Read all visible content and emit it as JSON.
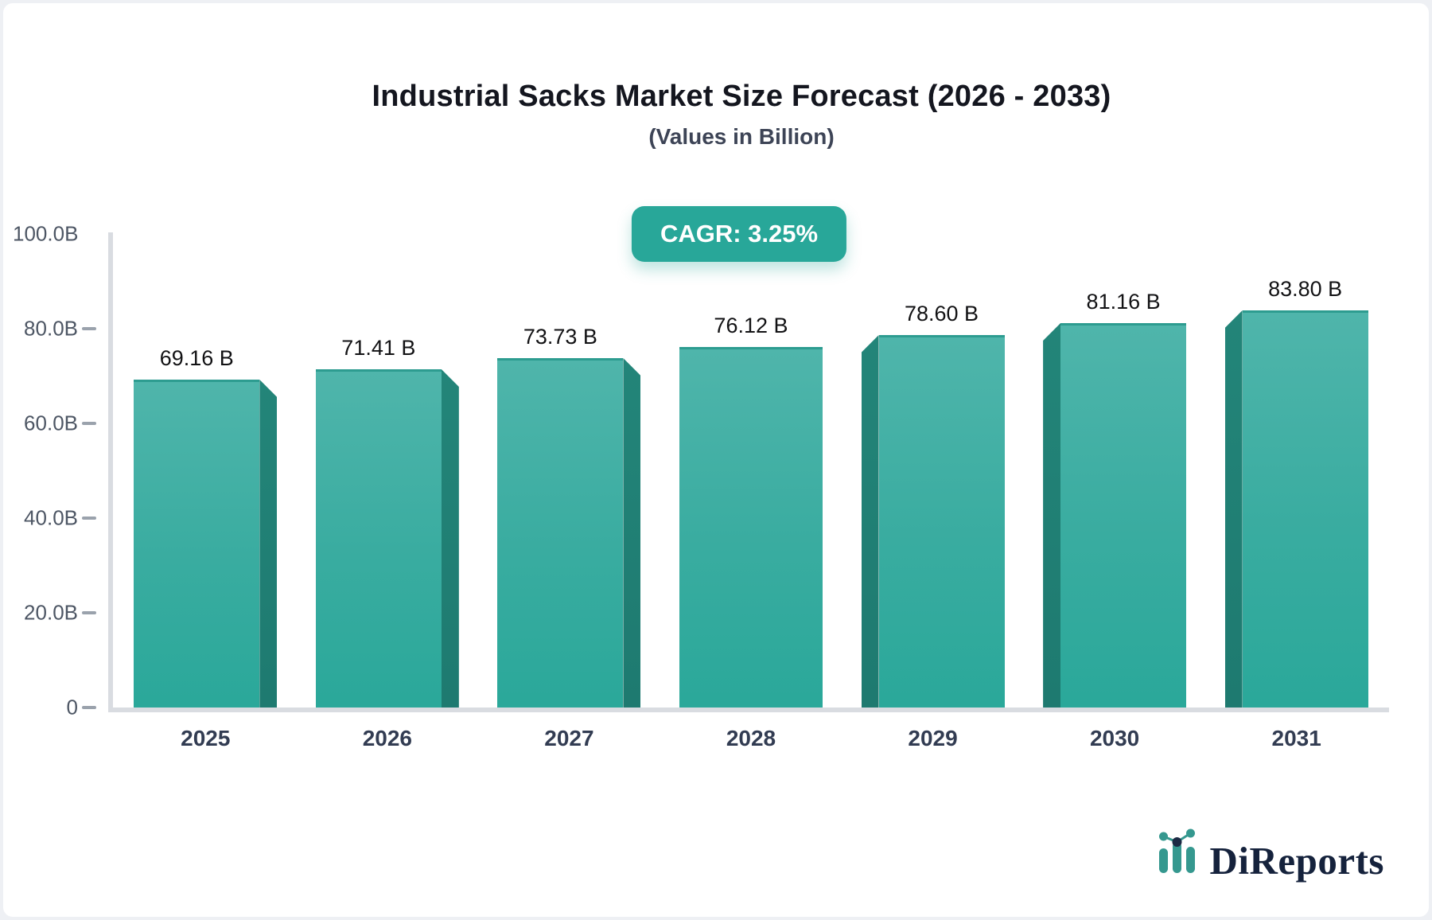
{
  "header": {
    "title": "Industrial Sacks Market Size Forecast (2026 - 2033)",
    "subtitle": "(Values in Billion)",
    "badge_label": "CAGR: 3.25%"
  },
  "chart_data": {
    "type": "bar",
    "title": "Industrial Sacks Market Size Forecast (2026 - 2033)",
    "subtitle": "(Values in Billion)",
    "xlabel": "",
    "ylabel": "",
    "ylim": [
      0,
      100
    ],
    "grid": false,
    "categories": [
      "2025",
      "2026",
      "2027",
      "2028",
      "2029",
      "2030",
      "2031"
    ],
    "values": [
      69.16,
      71.41,
      73.73,
      76.12,
      78.6,
      81.16,
      83.8
    ],
    "value_labels": [
      "69.16 B",
      "71.41 B",
      "73.73 B",
      "76.12 B",
      "78.60 B",
      "81.16 B",
      "83.80 B"
    ],
    "yticks": [
      {
        "value": 100,
        "label": "100.0B",
        "dash": false
      },
      {
        "value": 80,
        "label": "80.0B",
        "dash": true
      },
      {
        "value": 60,
        "label": "60.0B",
        "dash": true
      },
      {
        "value": 40,
        "label": "40.0B",
        "dash": true
      },
      {
        "value": 20,
        "label": "20.0B",
        "dash": true
      },
      {
        "value": 0,
        "label": "0",
        "dash": true
      }
    ],
    "annotation_badge": "CAGR: 3.25%"
  },
  "colors": {
    "accent_teal": "#28a799",
    "bar_gradient_top": "#4fb5ab",
    "bar_gradient_bottom": "#2aa89a",
    "bar_side_shade": "#1e7a70",
    "bar_top_edge": "#2d9c90",
    "axis_line": "#d9dce1",
    "tick_dash": "#9aa2ac",
    "y_label_text": "#4d5664",
    "x_label_text": "#323c52",
    "title_text": "#14161f",
    "logo_navy": "#15223c",
    "logo_teal": "#35988f"
  },
  "footer": {
    "logo_text": "DiReports"
  }
}
